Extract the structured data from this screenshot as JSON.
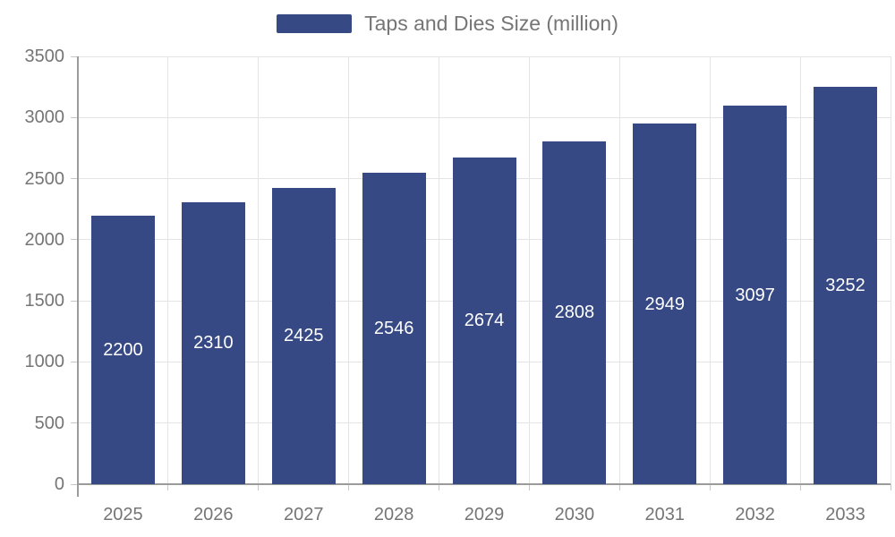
{
  "chart_data": {
    "type": "bar",
    "title": "Taps and Dies Size (million)",
    "legend": {
      "position": "top-center",
      "items": [
        "Taps and Dies Size (million)"
      ]
    },
    "categories": [
      "2025",
      "2026",
      "2027",
      "2028",
      "2029",
      "2030",
      "2031",
      "2032",
      "2033"
    ],
    "series": [
      {
        "name": "Taps and Dies Size (million)",
        "values": [
          2200,
          2310,
          2425,
          2546,
          2674,
          2808,
          2949,
          3097,
          3252
        ]
      }
    ],
    "xlabel": "",
    "ylabel": "",
    "ylim": [
      0,
      3500
    ],
    "yticks": [
      0,
      500,
      1000,
      1500,
      2000,
      2500,
      3000,
      3500
    ],
    "grid": true,
    "bar_labels": "inside-middle"
  },
  "colors": {
    "bar": "#364985",
    "bar_label": "#ffffff",
    "text": "#757575",
    "axis_line": "#9b9b9b",
    "tick_line": "#c6c6c6",
    "grid_line": "#e4e4e4",
    "background": "#ffffff"
  }
}
